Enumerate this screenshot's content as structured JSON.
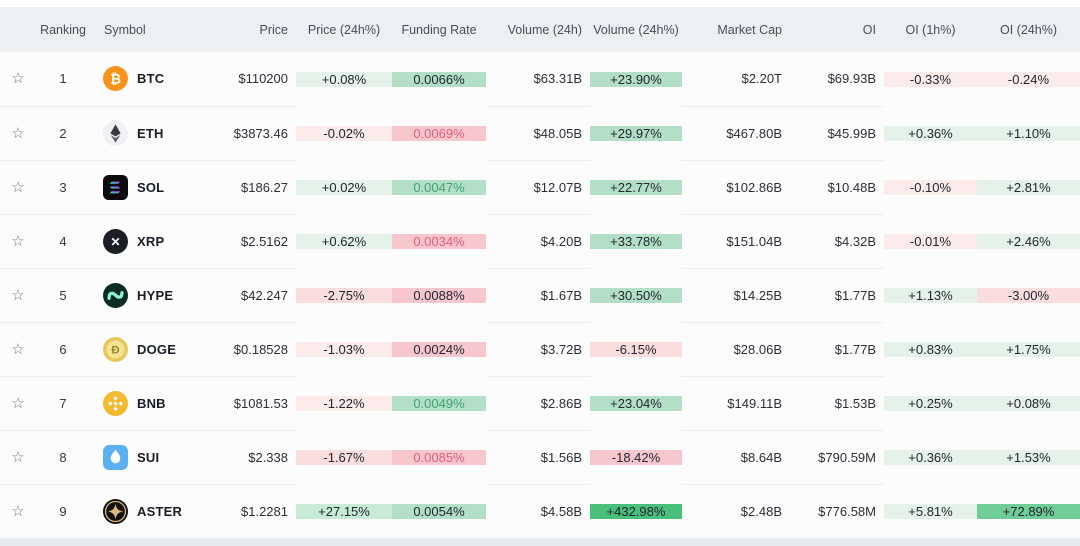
{
  "table": {
    "headers": [
      "",
      "Ranking",
      "Symbol",
      "Price",
      "Price (24h%)",
      "Funding Rate",
      "Volume (24h)",
      "Volume (24h%)",
      "Market Cap",
      "OI",
      "OI (1h%)",
      "OI (24h%)"
    ],
    "rows": [
      {
        "rank": "1",
        "symbol": "BTC",
        "icon": "btc",
        "price": "$110200",
        "price_24h": {
          "text": "+0.08%",
          "bg": "g1",
          "fg": "dark"
        },
        "funding_rate": {
          "text": "0.0066%",
          "bg": "g3",
          "fg": "dark"
        },
        "volume_24h": "$63.31B",
        "volume_24h_pct": {
          "text": "+23.90%",
          "bg": "g3",
          "fg": "dark"
        },
        "market_cap": "$2.20T",
        "oi": "$69.93B",
        "oi_1h": {
          "text": "-0.33%",
          "bg": "r1",
          "fg": "dark"
        },
        "oi_24h": {
          "text": "-0.24%",
          "bg": "r1",
          "fg": "dark"
        }
      },
      {
        "rank": "2",
        "symbol": "ETH",
        "icon": "eth",
        "price": "$3873.46",
        "price_24h": {
          "text": "-0.02%",
          "bg": "r1",
          "fg": "dark"
        },
        "funding_rate": {
          "text": "0.0069%",
          "bg": "r3",
          "fg": "red"
        },
        "volume_24h": "$48.05B",
        "volume_24h_pct": {
          "text": "+29.97%",
          "bg": "g3",
          "fg": "dark"
        },
        "market_cap": "$467.80B",
        "oi": "$45.99B",
        "oi_1h": {
          "text": "+0.36%",
          "bg": "g1",
          "fg": "dark"
        },
        "oi_24h": {
          "text": "+1.10%",
          "bg": "g1",
          "fg": "dark"
        }
      },
      {
        "rank": "3",
        "symbol": "SOL",
        "icon": "sol",
        "price": "$186.27",
        "price_24h": {
          "text": "+0.02%",
          "bg": "g1",
          "fg": "dark"
        },
        "funding_rate": {
          "text": "0.0047%",
          "bg": "g3",
          "fg": "green"
        },
        "volume_24h": "$12.07B",
        "volume_24h_pct": {
          "text": "+22.77%",
          "bg": "g3",
          "fg": "dark"
        },
        "market_cap": "$102.86B",
        "oi": "$10.48B",
        "oi_1h": {
          "text": "-0.10%",
          "bg": "r1",
          "fg": "dark"
        },
        "oi_24h": {
          "text": "+2.81%",
          "bg": "g1",
          "fg": "dark"
        }
      },
      {
        "rank": "4",
        "symbol": "XRP",
        "icon": "xrp",
        "price": "$2.5162",
        "price_24h": {
          "text": "+0.62%",
          "bg": "g1",
          "fg": "dark"
        },
        "funding_rate": {
          "text": "0.0034%",
          "bg": "r3",
          "fg": "red"
        },
        "volume_24h": "$4.20B",
        "volume_24h_pct": {
          "text": "+33.78%",
          "bg": "g3",
          "fg": "dark"
        },
        "market_cap": "$151.04B",
        "oi": "$4.32B",
        "oi_1h": {
          "text": "-0.01%",
          "bg": "r1",
          "fg": "dark"
        },
        "oi_24h": {
          "text": "+2.46%",
          "bg": "g1",
          "fg": "dark"
        }
      },
      {
        "rank": "5",
        "symbol": "HYPE",
        "icon": "hype",
        "price": "$42.247",
        "price_24h": {
          "text": "-2.75%",
          "bg": "r2",
          "fg": "dark"
        },
        "funding_rate": {
          "text": "0.0088%",
          "bg": "r3",
          "fg": "dark"
        },
        "volume_24h": "$1.67B",
        "volume_24h_pct": {
          "text": "+30.50%",
          "bg": "g3",
          "fg": "dark"
        },
        "market_cap": "$14.25B",
        "oi": "$1.77B",
        "oi_1h": {
          "text": "+1.13%",
          "bg": "g1",
          "fg": "dark"
        },
        "oi_24h": {
          "text": "-3.00%",
          "bg": "r2",
          "fg": "dark"
        }
      },
      {
        "rank": "6",
        "symbol": "DOGE",
        "icon": "doge",
        "price": "$0.18528",
        "price_24h": {
          "text": "-1.03%",
          "bg": "r1",
          "fg": "dark"
        },
        "funding_rate": {
          "text": "0.0024%",
          "bg": "r3",
          "fg": "dark"
        },
        "volume_24h": "$3.72B",
        "volume_24h_pct": {
          "text": "-6.15%",
          "bg": "r2",
          "fg": "dark"
        },
        "market_cap": "$28.06B",
        "oi": "$1.77B",
        "oi_1h": {
          "text": "+0.83%",
          "bg": "g1",
          "fg": "dark"
        },
        "oi_24h": {
          "text": "+1.75%",
          "bg": "g1",
          "fg": "dark"
        }
      },
      {
        "rank": "7",
        "symbol": "BNB",
        "icon": "bnb",
        "price": "$1081.53",
        "price_24h": {
          "text": "-1.22%",
          "bg": "r1",
          "fg": "dark"
        },
        "funding_rate": {
          "text": "0.0049%",
          "bg": "g3",
          "fg": "green"
        },
        "volume_24h": "$2.86B",
        "volume_24h_pct": {
          "text": "+23.04%",
          "bg": "g3",
          "fg": "dark"
        },
        "market_cap": "$149.11B",
        "oi": "$1.53B",
        "oi_1h": {
          "text": "+0.25%",
          "bg": "g1",
          "fg": "dark"
        },
        "oi_24h": {
          "text": "+0.08%",
          "bg": "g1",
          "fg": "dark"
        }
      },
      {
        "rank": "8",
        "symbol": "SUI",
        "icon": "sui",
        "price": "$2.338",
        "price_24h": {
          "text": "-1.67%",
          "bg": "r2",
          "fg": "dark"
        },
        "funding_rate": {
          "text": "0.0085%",
          "bg": "r3",
          "fg": "red"
        },
        "volume_24h": "$1.56B",
        "volume_24h_pct": {
          "text": "-18.42%",
          "bg": "r3",
          "fg": "dark"
        },
        "market_cap": "$8.64B",
        "oi": "$790.59M",
        "oi_1h": {
          "text": "+0.36%",
          "bg": "g1",
          "fg": "dark"
        },
        "oi_24h": {
          "text": "+1.53%",
          "bg": "g1",
          "fg": "dark"
        }
      },
      {
        "rank": "9",
        "symbol": "ASTER",
        "icon": "aster",
        "price": "$1.2281",
        "price_24h": {
          "text": "+27.15%",
          "bg": "g2",
          "fg": "dark"
        },
        "funding_rate": {
          "text": "0.0054%",
          "bg": "g3",
          "fg": "dark"
        },
        "volume_24h": "$4.58B",
        "volume_24h_pct": {
          "text": "+432.98%",
          "bg": "g5",
          "fg": "dark"
        },
        "market_cap": "$2.48B",
        "oi": "$776.58M",
        "oi_1h": {
          "text": "+5.81%",
          "bg": "g1",
          "fg": "dark"
        },
        "oi_24h": {
          "text": "+72.89%",
          "bg": "g4",
          "fg": "dark"
        }
      }
    ]
  },
  "icons": {
    "star": "☆"
  },
  "colors": {
    "g1": "#e4f2ea",
    "g2": "#c8ebd6",
    "g3": "#b4dfc7",
    "g4": "#70cd97",
    "g5": "#48c07b",
    "r1": "#fcebeb",
    "r2": "#fadddd",
    "r3": "#f8c7cd",
    "dark": "#22262e",
    "green": "#41a376",
    "red": "#e05f74",
    "header_bg": "#edf0f3",
    "row_bg": "#fcfcfd",
    "btc": "#f7931a",
    "bnb": "#f3ba2f",
    "sui": "#5bb0f0"
  }
}
